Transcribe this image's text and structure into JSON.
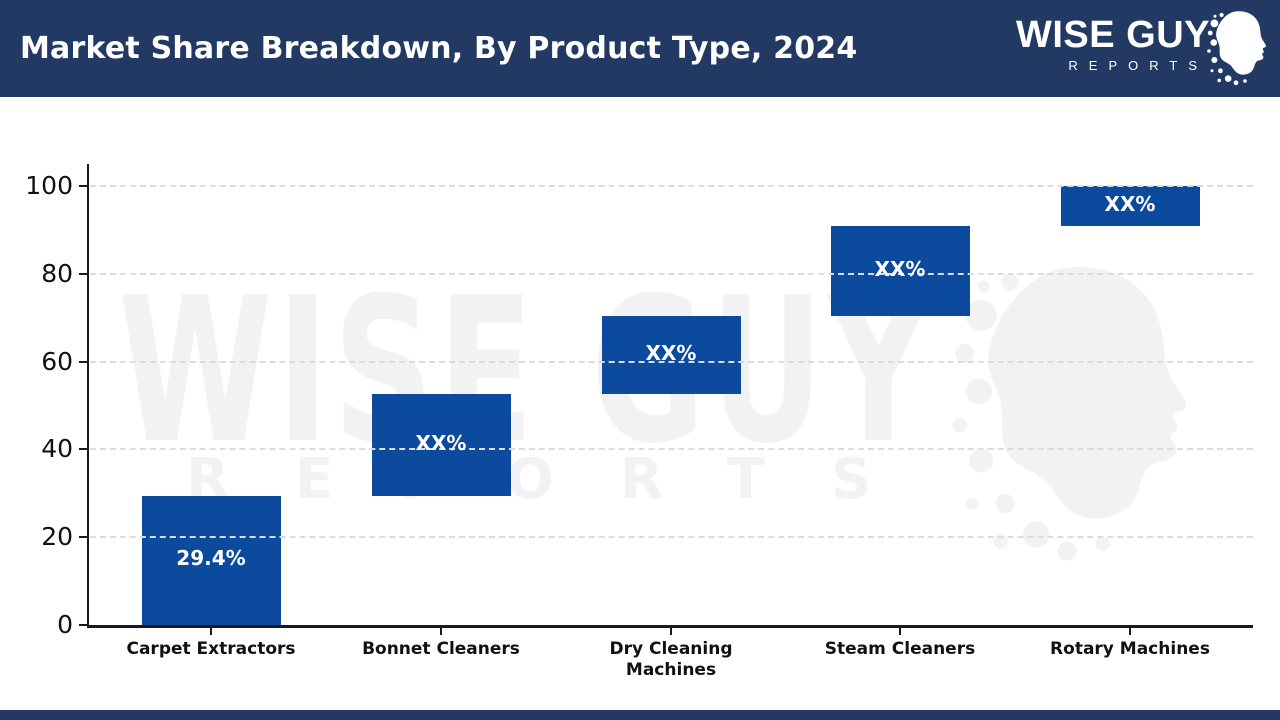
{
  "header": {
    "title": "Market Share Breakdown, By Product Type, 2024",
    "logo": {
      "name": "WISE GUY",
      "tagline": "REPORTS"
    }
  },
  "watermark": {
    "line1": "WISE GUY",
    "line2": "REPORTS"
  },
  "colors": {
    "header_bg": "#223A63",
    "footer_bg": "#223A63",
    "bar": "#0C4A9E",
    "grid": "#DCDCDC",
    "axis": "#1A1A1A",
    "tick_text": "#111111",
    "bar_label": "#FFFFFF",
    "watermark": "#F2F2F4"
  },
  "chart_data": {
    "type": "bar",
    "subtype": "waterfall",
    "title": "Market Share Breakdown, By Product Type, 2024",
    "categories": [
      "Carpet Extractors",
      "Bonnet Cleaners",
      "Dry Cleaning Machines",
      "Steam Cleaners",
      "Rotary Machines"
    ],
    "segments": [
      {
        "category": "Carpet Extractors",
        "start": 0,
        "end": 29.4,
        "label": "29.4%"
      },
      {
        "category": "Bonnet Cleaners",
        "start": 29.4,
        "end": 52.7,
        "label": "XX%"
      },
      {
        "category": "Dry Cleaning Machines",
        "start": 52.7,
        "end": 70.4,
        "label": "XX%"
      },
      {
        "category": "Steam Cleaners",
        "start": 70.4,
        "end": 91.0,
        "label": "XX%"
      },
      {
        "category": "Rotary Machines",
        "start": 91.0,
        "end": 100.0,
        "label": "XX%"
      }
    ],
    "yticks": [
      0,
      20,
      40,
      60,
      80,
      100
    ],
    "ylim": [
      0,
      105
    ],
    "xlabel": "",
    "ylabel": "",
    "grid": "horizontal-dashed",
    "legend_position": "none",
    "bar_color": "#0C4A9E"
  }
}
